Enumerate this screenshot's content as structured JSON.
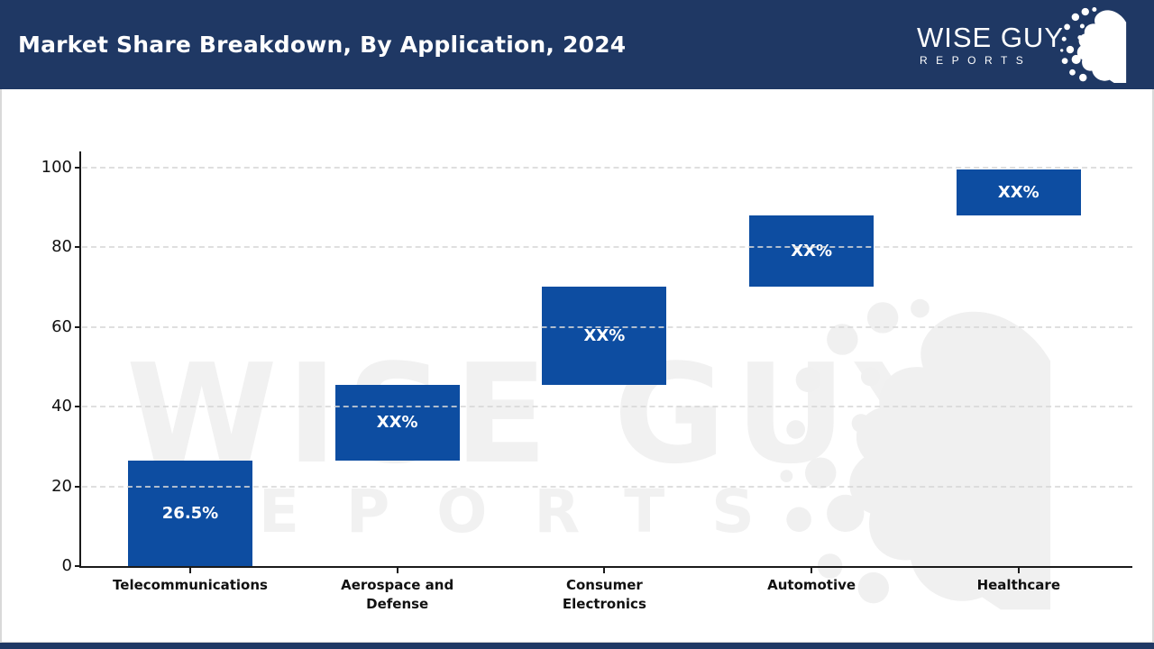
{
  "header": {
    "title": "Market Share Breakdown, By Application, 2024",
    "logo": {
      "line1": "WISE GUY",
      "line2": "REPORTS"
    }
  },
  "watermark": {
    "line1": "WISE GUY",
    "line2": "REPORTS"
  },
  "chart_data": {
    "type": "bar",
    "subtype": "floating-waterfall",
    "title": "Market Share Breakdown, By Application, 2024",
    "categories": [
      "Telecommunications",
      "Aerospace and\nDefense",
      "Consumer\nElectronics",
      "Automotive",
      "Healthcare"
    ],
    "bars": [
      {
        "category": "Telecommunications",
        "start": 0,
        "end": 26.5,
        "label": "26.5%"
      },
      {
        "category": "Aerospace and Defense",
        "start": 26.5,
        "end": 45.5,
        "label": "XX%"
      },
      {
        "category": "Consumer Electronics",
        "start": 45.5,
        "end": 70,
        "label": "XX%"
      },
      {
        "category": "Automotive",
        "start": 70,
        "end": 88,
        "label": "XX%"
      },
      {
        "category": "Healthcare",
        "start": 88,
        "end": 99.5,
        "label": "XX%"
      }
    ],
    "yticks": [
      0,
      20,
      40,
      60,
      80,
      100
    ],
    "ylim": [
      0,
      105
    ],
    "xlabel": "",
    "ylabel": "",
    "grid": "horizontal-dashed",
    "legend": "none",
    "colors": {
      "bar": "#0d4da1",
      "bar_label": "#ffffff",
      "header_bg": "#1f3864",
      "gridline": "#d8d8d8",
      "axis": "#1a1a1a"
    }
  }
}
